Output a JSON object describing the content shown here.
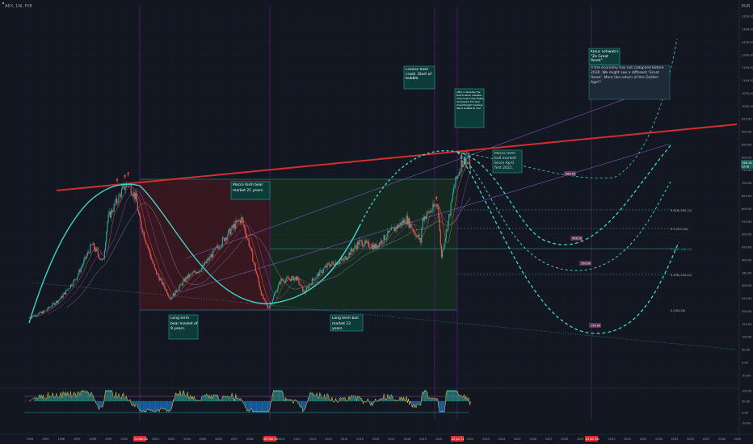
{
  "symbol": "AEX, 1W, FXE",
  "currency": "EUR",
  "price_badge": {
    "value": "766.16",
    "sub": "23:18",
    "color": "#1e5c57"
  },
  "colors": {
    "background": "#131722",
    "grid": "#1c2030",
    "cycle": "#3bd6c6",
    "resistance": "#d32f2f",
    "bear_zone": "#b71c1c",
    "bull_zone": "#1b5e20",
    "up_candle": "#26a69a",
    "down_candle": "#ef5350",
    "marker": "#f44336"
  },
  "notes": {
    "corona": "Corona flash crash. Start of bubble.",
    "two_decades": "After 2 decades the Dutch stock markets macro term has finally recovered. For how long though? Looking like a bubble to me!",
    "schwab_title": "Klaus Schwab's \"Ze Great Reset\".",
    "schwab_body": "If the economy has not collapsed before 2030. We might see a different 'Great Reset'. More like return of the Golden Age!?",
    "bear21": "Macro term bear market 21 years.",
    "bull_since_2021": "Macro term bull market! Since April first 2021.",
    "bear9": "Long term bear market of 9 years.",
    "bull12": "Long term bull market 12 years."
  },
  "target_labels": [
    "669.00",
    "456.50",
    "356.00",
    "190.00"
  ],
  "fib_labels": [
    "0.618 (580.20)",
    "0.5 (510.00)",
    "0.382 (436.75)",
    "0.236 (344.40)",
    "0 (164.00)"
  ],
  "year_labels": [
    "1994",
    "1995",
    "1996",
    "1997",
    "1998",
    "1999",
    "2000",
    "2001",
    "2002",
    "2003",
    "2004",
    "2005",
    "2006",
    "2007",
    "2008",
    "2009",
    "2010",
    "2011",
    "2012",
    "2013",
    "2014",
    "2015",
    "2016",
    "2017",
    "2018",
    "2019",
    "2020",
    "2021",
    "2022",
    "2023",
    "2024",
    "2025",
    "2026",
    "2027",
    "2028",
    "2029",
    "2030",
    "2031",
    "2032",
    "2033",
    "2034",
    "2035",
    "2036",
    "2037",
    "2038",
    "2039"
  ],
  "date_flags": [
    "24 Mar 00",
    "09 Mar 09",
    "22 Jun 21",
    "01 Jan 30"
  ],
  "price_axis_labels": [
    "1350.00",
    "1300.00",
    "1250.00",
    "1200.00",
    "1150.00",
    "1100.00",
    "1050.00",
    "1000.00",
    "950.00",
    "900.00",
    "850.00",
    "800.00",
    "750.00",
    "700.00",
    "650.00",
    "600.00",
    "550.00",
    "500.00",
    "450.00",
    "400.00",
    "350.00",
    "300.00",
    "250.00",
    "200.00",
    "150.00",
    "100.00",
    "50.00",
    "0.00",
    "-50.00"
  ],
  "osc_axis_labels": [
    "100.00",
    "50.00",
    "0.00",
    "-50.00"
  ],
  "chart_data": {
    "type": "line",
    "title": "AEX, 1W, FXE",
    "x_unit": "year",
    "y_unit": "EUR",
    "ylim": [
      -50,
      1350
    ],
    "xlim": [
      1994,
      2039
    ],
    "series": [
      {
        "values": [
          [
            1994,
            175
          ],
          [
            1995,
            200
          ],
          [
            1996,
            250
          ],
          [
            1997,
            330
          ],
          [
            1998,
            460
          ],
          [
            1998.7,
            390
          ],
          [
            1999,
            560
          ],
          [
            2000,
            680
          ],
          [
            2000.3,
            700
          ],
          [
            2000.8,
            640
          ],
          [
            2001,
            560
          ],
          [
            2002,
            360
          ],
          [
            2003,
            250
          ],
          [
            2003.5,
            290
          ],
          [
            2004,
            330
          ],
          [
            2005,
            370
          ],
          [
            2006,
            450
          ],
          [
            2007,
            530
          ],
          [
            2007.5,
            560
          ],
          [
            2008,
            460
          ],
          [
            2008.8,
            260
          ],
          [
            2009.2,
            210
          ],
          [
            2010,
            320
          ],
          [
            2011,
            330
          ],
          [
            2011.5,
            270
          ],
          [
            2012,
            320
          ],
          [
            2013,
            380
          ],
          [
            2014,
            400
          ],
          [
            2015,
            470
          ],
          [
            2016,
            450
          ],
          [
            2017,
            510
          ],
          [
            2018,
            560
          ],
          [
            2018.9,
            470
          ],
          [
            2019,
            560
          ],
          [
            2020,
            620
          ],
          [
            2020.2,
            410
          ],
          [
            2020.8,
            600
          ],
          [
            2021,
            680
          ],
          [
            2021.5,
            780
          ],
          [
            2021.9,
            800
          ],
          [
            2022.1,
            750
          ]
        ]
      }
    ],
    "resistance_line": [
      [
        1995,
        700
      ],
      [
        2039,
        900
      ]
    ],
    "bear_zone_years": [
      2000,
      2009
    ],
    "bull_zone_years": [
      2009,
      2021
    ]
  }
}
